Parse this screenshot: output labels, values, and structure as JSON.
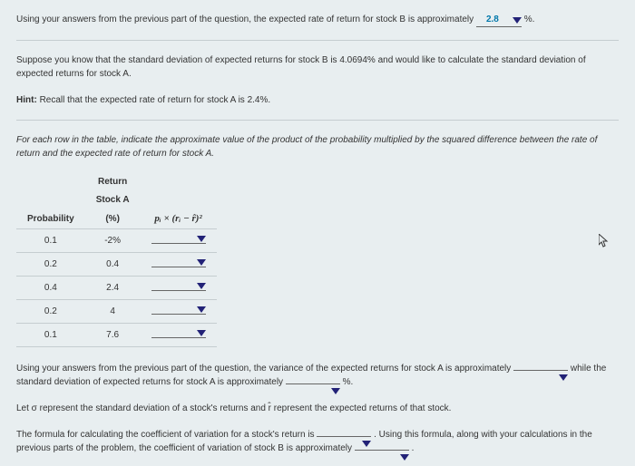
{
  "intro": {
    "line1_a": "Using your answers from the previous part of the question, the expected rate of return for stock B is approximately",
    "dd1_value": "2.8",
    "line1_b": "%."
  },
  "suppose": {
    "line1": "Suppose you know that the standard deviation of expected returns for stock B is 4.0694% and would like to calculate the standard deviation of",
    "line2": "expected returns for stock A."
  },
  "hint": {
    "label": "Hint:",
    "text": "Recall that the expected rate of return for stock A is 2.4%."
  },
  "instruction": {
    "line1": "For each row in the table, indicate the approximate value of the product of the probability multiplied by the squared difference between the rate of",
    "line2": "return and the expected rate of return for stock A."
  },
  "table": {
    "headers": {
      "prob": "Probability",
      "ret1": "Return",
      "ret2": "Stock A",
      "ret3": "(%)",
      "formula": "pᵢ × (rᵢ − r̂)²"
    },
    "rows": [
      {
        "p": "0.1",
        "r": "-2%"
      },
      {
        "p": "0.2",
        "r": "0.4"
      },
      {
        "p": "0.4",
        "r": "2.4"
      },
      {
        "p": "0.2",
        "r": "4"
      },
      {
        "p": "0.1",
        "r": "7.6"
      }
    ]
  },
  "variance": {
    "a": "Using your answers from the previous part of the question, the variance of the expected returns for stock A is approximately",
    "b": "while the",
    "c": "standard deviation of expected returns for stock A is approximately",
    "d": "%."
  },
  "let": "Let σ represent the standard deviation of a stock's returns and r̂ represent the expected returns of that stock.",
  "formula_para": {
    "a": "The formula for calculating the coefficient of variation for a stock's return is",
    "b": ". Using this formula, along with your calculations in the",
    "c": "previous parts of the problem, the coefficient of variation of stock B is approximately",
    "d": "."
  }
}
